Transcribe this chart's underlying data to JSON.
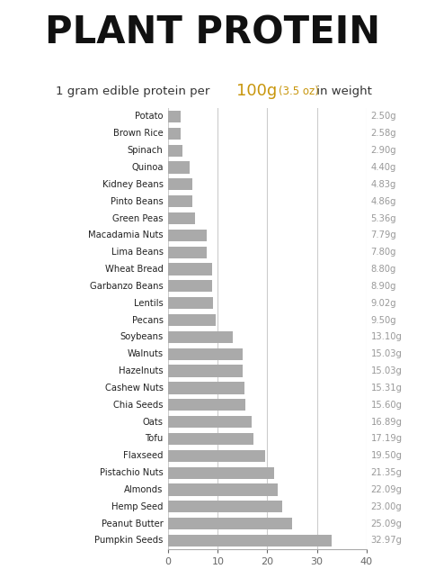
{
  "title": "PLANT PROTEIN",
  "subtitle_plain": "1 gram edible protein per ",
  "subtitle_highlight": "100g",
  "subtitle_parens": "(3.5 oz)",
  "subtitle_end": " in weight",
  "categories": [
    "Potato",
    "Brown Rice",
    "Spinach",
    "Quinoa",
    "Kidney Beans",
    "Pinto Beans",
    "Green Peas",
    "Macadamia Nuts",
    "Lima Beans",
    "Wheat Bread",
    "Garbanzo Beans",
    "Lentils",
    "Pecans",
    "Soybeans",
    "Walnuts",
    "Hazelnuts",
    "Cashew Nuts",
    "Chia Seeds",
    "Oats",
    "Tofu",
    "Flaxseed",
    "Pistachio Nuts",
    "Almonds",
    "Hemp Seed",
    "Peanut Butter",
    "Pumpkin Seeds"
  ],
  "values": [
    2.5,
    2.58,
    2.9,
    4.4,
    4.83,
    4.86,
    5.36,
    7.79,
    7.8,
    8.8,
    8.9,
    9.02,
    9.5,
    13.1,
    15.03,
    15.03,
    15.31,
    15.6,
    16.89,
    17.19,
    19.5,
    21.35,
    22.09,
    23.0,
    25.09,
    32.97
  ],
  "labels": [
    "2.50g",
    "2.58g",
    "2.90g",
    "4.40g",
    "4.83g",
    "4.86g",
    "5.36g",
    "7.79g",
    "7.80g",
    "8.80g",
    "8.90g",
    "9.02g",
    "9.50g",
    "13.10g",
    "15.03g",
    "15.03g",
    "15.31g",
    "15.60g",
    "16.89g",
    "17.19g",
    "19.50g",
    "21.35g",
    "22.09g",
    "23.00g",
    "25.09g",
    "32.97g"
  ],
  "bar_color": "#aaaaaa",
  "bg_color": "#ffffff",
  "title_color": "#111111",
  "label_color": "#999999",
  "subtitle_color": "#333333",
  "highlight_color": "#c8960c",
  "xlim": [
    0,
    40
  ],
  "xticks": [
    0,
    10,
    20,
    30,
    40
  ],
  "grid_color": "#cccccc",
  "figsize": [
    4.74,
    6.32
  ],
  "dpi": 100
}
